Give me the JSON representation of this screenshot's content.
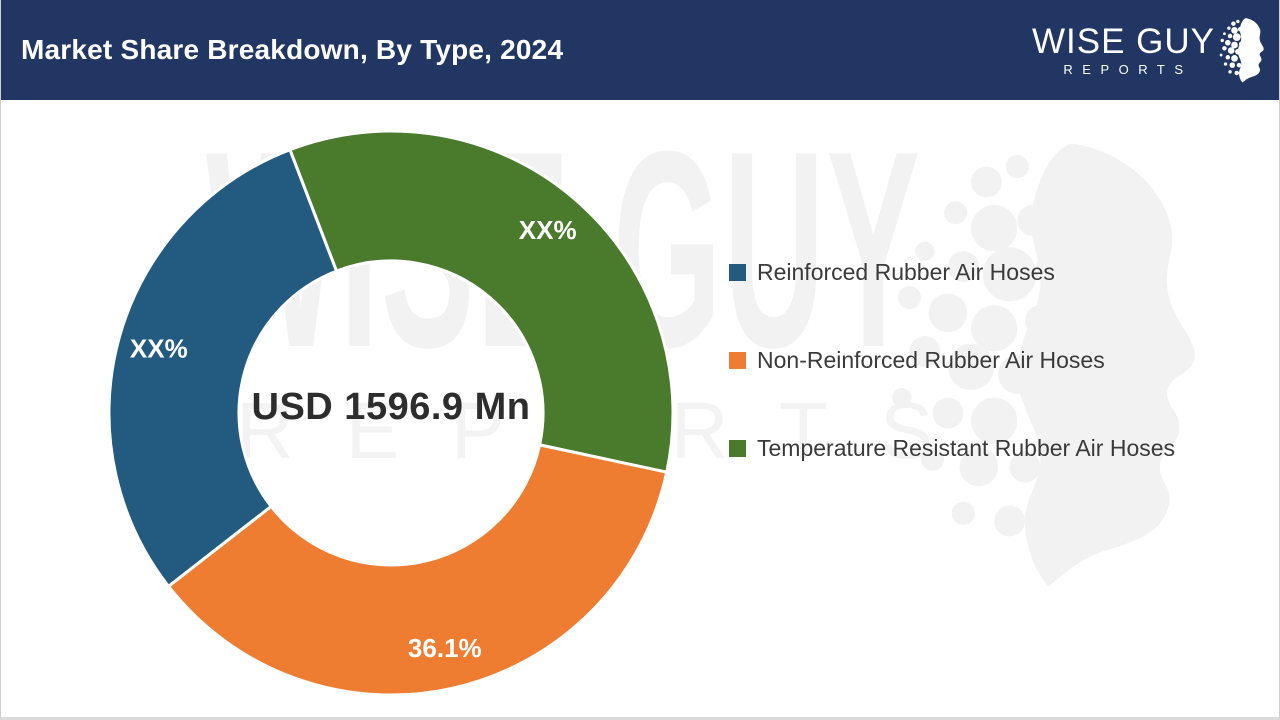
{
  "header": {
    "title": "Market Share Breakdown, By Type, 2024",
    "logo": {
      "line1": "WISE GUY",
      "line2": "REPORTS"
    },
    "background_color": "#213663"
  },
  "watermark": {
    "line1": "WISE GUY",
    "line2": "REPORTS"
  },
  "chart_data": {
    "type": "pie",
    "variant": "donut",
    "title": "Market Share Breakdown, By Type, 2024",
    "center_label": "USD 1596.9 Mn",
    "start_angle_deg": -21,
    "legend_position": "right",
    "slices": [
      {
        "name": "Temperature Resistant Rubber Air Hoses",
        "value_pct": 34.2,
        "display_label": "XX%",
        "color": "#4a7a2b"
      },
      {
        "name": "Non-Reinforced Rubber Air Hoses",
        "value_pct": 36.1,
        "display_label": "36.1%",
        "color": "#ee7d31"
      },
      {
        "name": "Reinforced Rubber Air Hoses",
        "value_pct": 29.7,
        "display_label": "XX%",
        "color": "#235b80"
      }
    ],
    "legend": [
      {
        "label": "Reinforced Rubber Air Hoses",
        "color": "#235b80"
      },
      {
        "label": "Non-Reinforced Rubber Air Hoses",
        "color": "#ee7d31"
      },
      {
        "label": "Temperature Resistant Rubber Air Hoses",
        "color": "#4a7a2b"
      }
    ]
  },
  "colors": {
    "header_bg": "#213663",
    "title_text": "#ffffff",
    "legend_text": "#3a3a3a",
    "center_text": "#2d2d2d",
    "slice_label_text": "#ffffff",
    "watermark": "#f2f2f2"
  }
}
